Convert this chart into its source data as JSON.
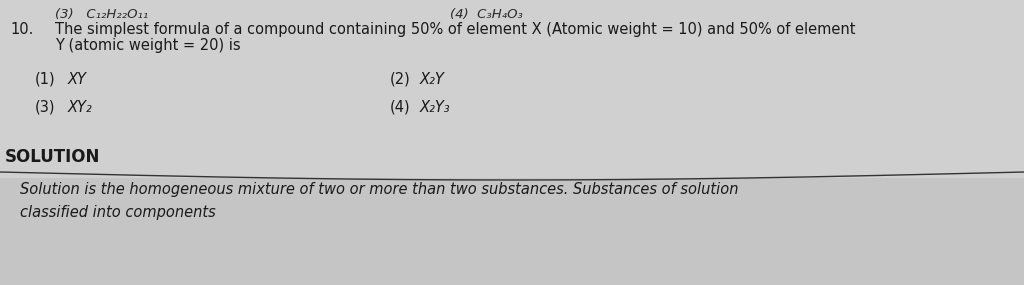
{
  "bg_color_top": "#d0d0d0",
  "bg_color_bottom": "#c8c8c8",
  "top_left_text": "(3)   C₁₂H₂₂O₁₁",
  "top_right_label": "(4)  C₃H₄O₃",
  "q10_number": "10.",
  "q10_line1": "The simplest formula of a compound containing 50% of element X (Atomic weight = 10) and 50% of element",
  "q10_line2": "Y (atomic weight = 20) is",
  "opt1_label": "(1)",
  "opt1_formula": "XY",
  "opt2_label": "(2)",
  "opt2_formula": "X₂Y",
  "opt3_label": "(3)",
  "opt3_formula": "XY₂",
  "opt4_label": "(4)",
  "opt4_formula": "X₂Y₃",
  "solution_label": "SOLUTION",
  "solution_text_line1": "Solution is the homogeneous mixture of two or more than two substances. Substances of solution",
  "solution_text_line2": "classified into components",
  "font_size_small": 9.5,
  "font_size_main": 10.5,
  "font_size_solution_label": 12,
  "font_size_solution_text": 10.5
}
